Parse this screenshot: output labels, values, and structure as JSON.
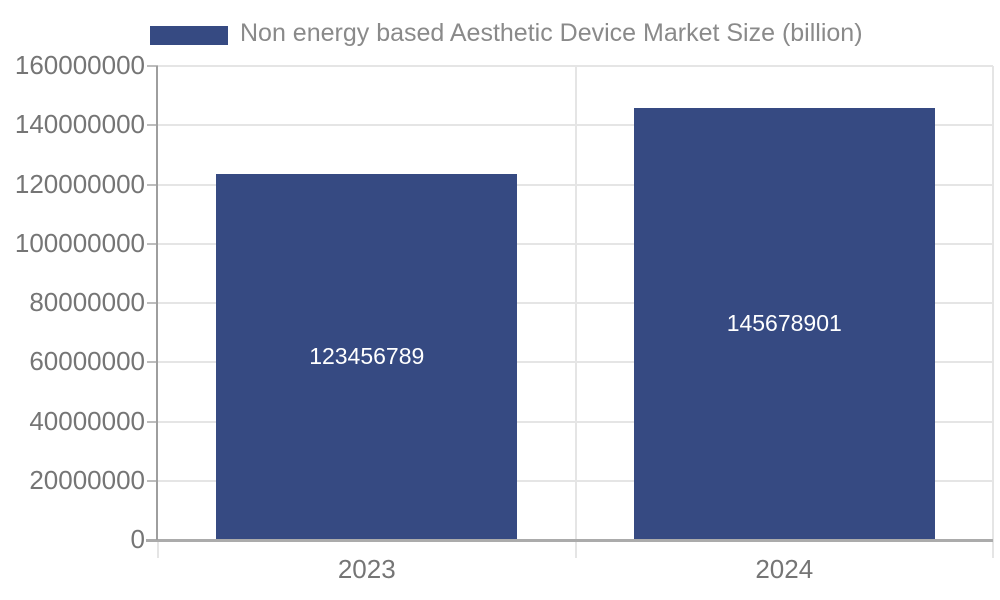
{
  "chart_data": {
    "type": "bar",
    "title": "Non energy based Aesthetic Device Market Size (billion)",
    "legend": {
      "label": "Non energy based Aesthetic Device Market Size (billion)",
      "position": "top-left"
    },
    "categories": [
      "2023",
      "2024"
    ],
    "series": [
      {
        "name": "Non energy based Aesthetic Device Market Size (billion)",
        "values": [
          123456789,
          145678901
        ]
      }
    ],
    "value_labels": [
      "123456789",
      "145678901"
    ],
    "xlabel": "",
    "ylabel": "",
    "ylim": [
      0,
      160000000
    ],
    "ytick_step": 20000000,
    "ytick_labels": [
      "0",
      "20000000",
      "40000000",
      "60000000",
      "80000000",
      "100000000",
      "120000000",
      "140000000",
      "160000000"
    ],
    "grid": true,
    "colors": {
      "bar": "#364a82",
      "value_label": "#ffffff",
      "grid_line": "#e5e5e5",
      "tick_mark": "#bdbdbd",
      "x_axis_line": "#ababab",
      "y_axis_line": "#9e9e9e",
      "tick_text": "#757575",
      "legend_text": "#8a8a8a"
    }
  }
}
